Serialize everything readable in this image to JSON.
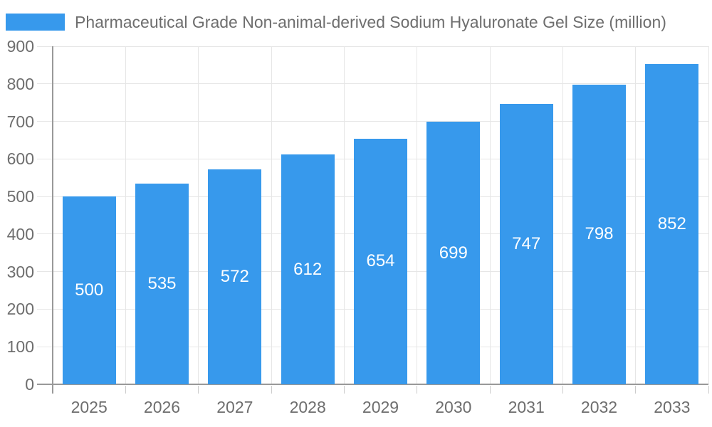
{
  "chart_data": {
    "type": "bar",
    "title": "Pharmaceutical Grade Non-animal-derived Sodium Hyaluronate Gel Size (million)",
    "categories": [
      "2025",
      "2026",
      "2027",
      "2028",
      "2029",
      "2030",
      "2031",
      "2032",
      "2033"
    ],
    "values": [
      500,
      535,
      572,
      612,
      654,
      699,
      747,
      798,
      852
    ],
    "xlabel": "",
    "ylabel": "",
    "ylim": [
      0,
      900
    ],
    "ytick_step": 100,
    "grid": true,
    "legend_position": "top",
    "value_labels": "centered-inside-bars",
    "colors": {
      "bar": "#3799EC",
      "value_label": "#ffffff",
      "axis_text": "#6E6E6E",
      "grid": "#E6E6E6",
      "tick": "#CCCCCC",
      "axis_line": "#999999",
      "background": "#ffffff"
    }
  }
}
